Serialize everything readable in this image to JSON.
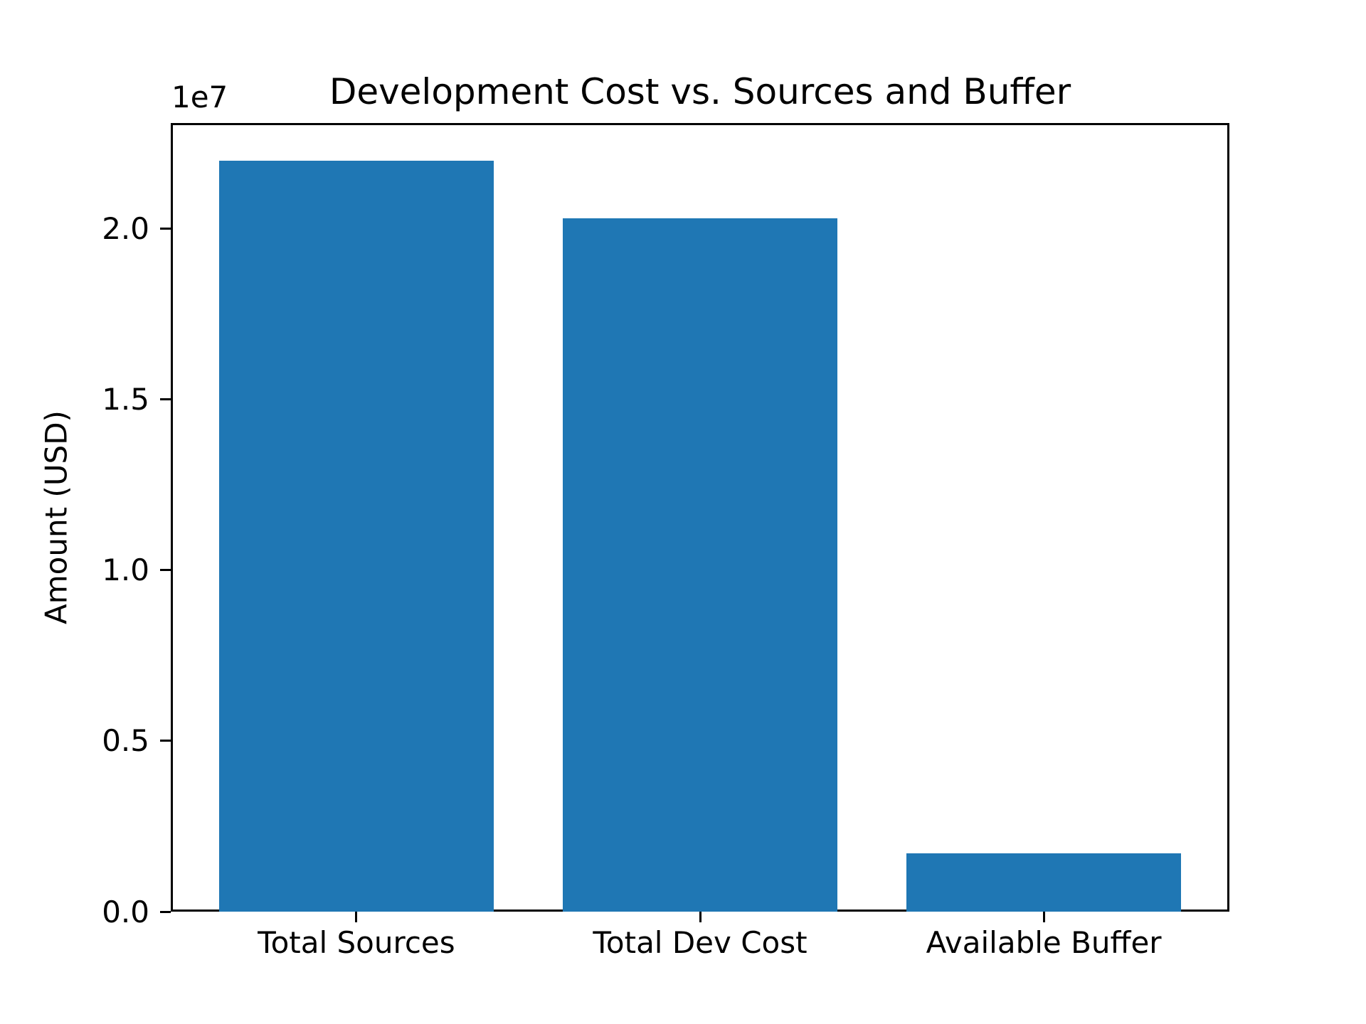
{
  "chart_data": {
    "type": "bar",
    "title": "Development Cost vs. Sources and Buffer",
    "ylabel": "Amount (USD)",
    "xlabel": "",
    "offset_text": "1e7",
    "categories": [
      "Total Sources",
      "Total Dev Cost",
      "Available Buffer"
    ],
    "values": [
      22000000,
      20300000,
      1700000
    ],
    "bar_color": "#1f77b4",
    "text_color": "#000000",
    "ylim": [
      0,
      23100000
    ],
    "yticks": [
      0,
      5000000,
      10000000,
      15000000,
      20000000
    ],
    "ytick_labels": [
      "0.0",
      "0.5",
      "1.0",
      "1.5",
      "2.0"
    ],
    "xlim": [
      -0.54,
      2.54
    ],
    "bar_width_data": 0.8,
    "grid": false,
    "legend": false
  }
}
